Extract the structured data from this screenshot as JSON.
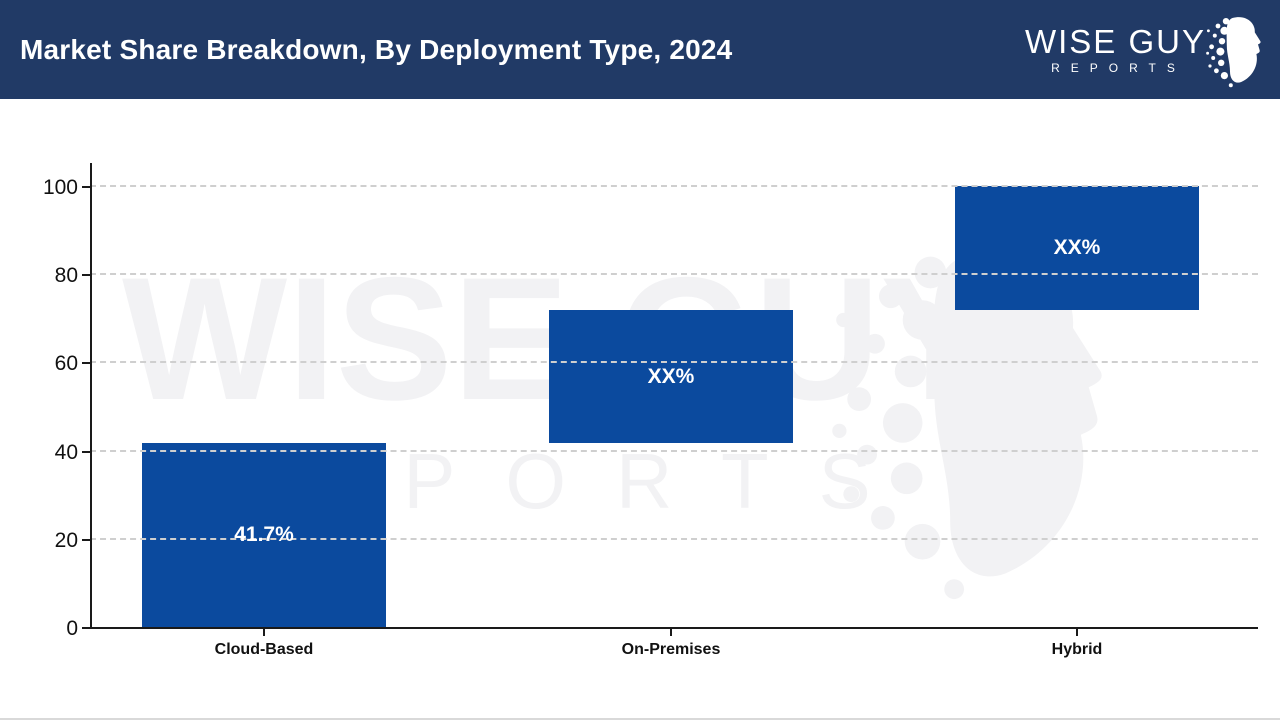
{
  "header": {
    "title": "Market Share Breakdown, By Deployment Type, 2024",
    "bg_color": "#213A66",
    "logo": {
      "line1": "WISE GUY",
      "line2": "REPORTS"
    }
  },
  "watermark": {
    "line1": "WISE GUY",
    "line2": "REPORTS"
  },
  "chart_data": {
    "type": "bar",
    "subtype": "floating-stacked-breakdown",
    "title": "Market Share Breakdown, By Deployment Type, 2024",
    "categories": [
      "Cloud-Based",
      "On-Premises",
      "Hybrid"
    ],
    "series": [
      {
        "name": "Cloud-Based",
        "start": 0,
        "end": 41.7,
        "label": "41.7%"
      },
      {
        "name": "On-Premises",
        "start": 41.7,
        "end": 71.9,
        "label": "XX%"
      },
      {
        "name": "Hybrid",
        "start": 71.9,
        "end": 100,
        "label": "XX%"
      }
    ],
    "ylim": [
      0,
      100
    ],
    "yticks": [
      0,
      20,
      40,
      60,
      80,
      100
    ],
    "grid": "horizontal dashed, drawn over bars",
    "legend": "none",
    "bar_color": "#0B4A9E",
    "bar_label_color": "#FFFFFF",
    "axis_color": "#1A1A1A"
  }
}
